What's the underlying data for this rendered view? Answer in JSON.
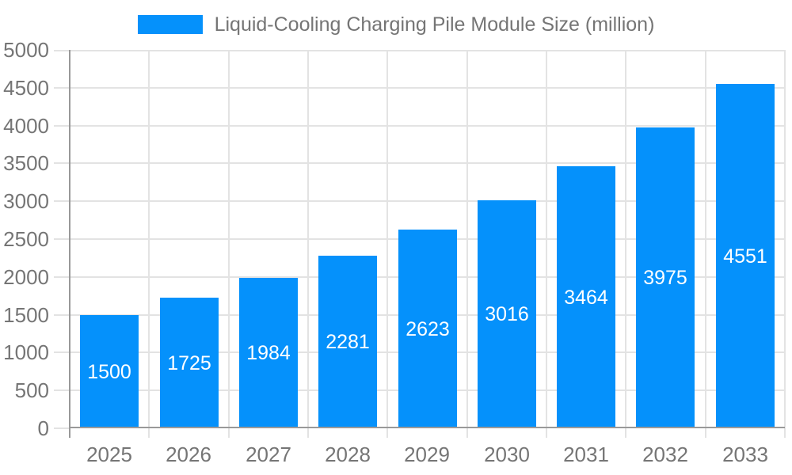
{
  "chart_data": {
    "type": "bar",
    "title": "Liquid-Cooling Charging Pile Module Size (million)",
    "categories": [
      "2025",
      "2026",
      "2027",
      "2028",
      "2029",
      "2030",
      "2031",
      "2032",
      "2033"
    ],
    "series": [
      {
        "name": "Liquid-Cooling Charging Pile Module Size (million)",
        "values": [
          1500,
          1725,
          1984,
          2281,
          2623,
          3016,
          3464,
          3975,
          4551
        ]
      }
    ],
    "xlabel": "",
    "ylabel": "",
    "ylim": [
      0,
      5000
    ],
    "ytick_step": 500,
    "yticks": [
      0,
      500,
      1000,
      1500,
      2000,
      2500,
      3000,
      3500,
      4000,
      4500,
      5000
    ],
    "grid": true,
    "value_labels": "inside-center",
    "legend_position": "top-center",
    "colors": {
      "bar": "#0591fb",
      "bar_label_text": "#ffffff",
      "axis_text": "#757575",
      "legend_text": "#757575",
      "gridline": "#e3e3e3",
      "axis_line": "#999999",
      "background": "#ffffff"
    }
  }
}
